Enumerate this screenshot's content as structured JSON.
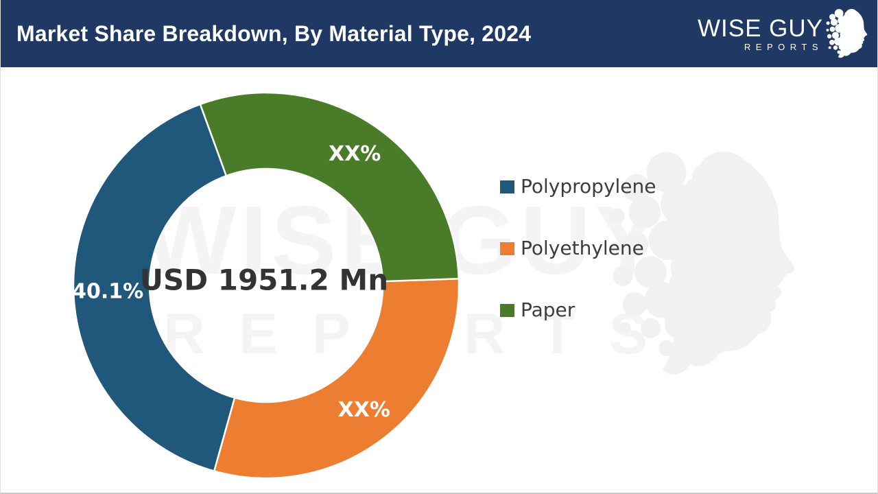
{
  "header": {
    "title": "Market Share Breakdown, By Material Type, 2024",
    "bg_color": "#1F3864",
    "logo": {
      "line1": "WISE GUY",
      "line2": "REPORTS"
    }
  },
  "watermark": {
    "line1": "WISE GUY",
    "line2": "REPORTS"
  },
  "chart_data": {
    "type": "pie",
    "subtype": "donut",
    "title": "Market Share Breakdown, By Material Type, 2024",
    "center_label": "USD 1951.2 Mn",
    "categories": [
      "Polypropylene",
      "Polyethylene",
      "Paper"
    ],
    "values": [
      40.1,
      29.9,
      30.0
    ],
    "slice_labels": [
      "40.1%",
      "XX%",
      "XX%"
    ],
    "colors": [
      "#20587C",
      "#ED7D31",
      "#4A7B28"
    ],
    "start_angle": 110,
    "direction": "counterclockwise",
    "donut_hole_ratio": 0.6,
    "legend_position": "right",
    "label_color": "#ffffff"
  }
}
